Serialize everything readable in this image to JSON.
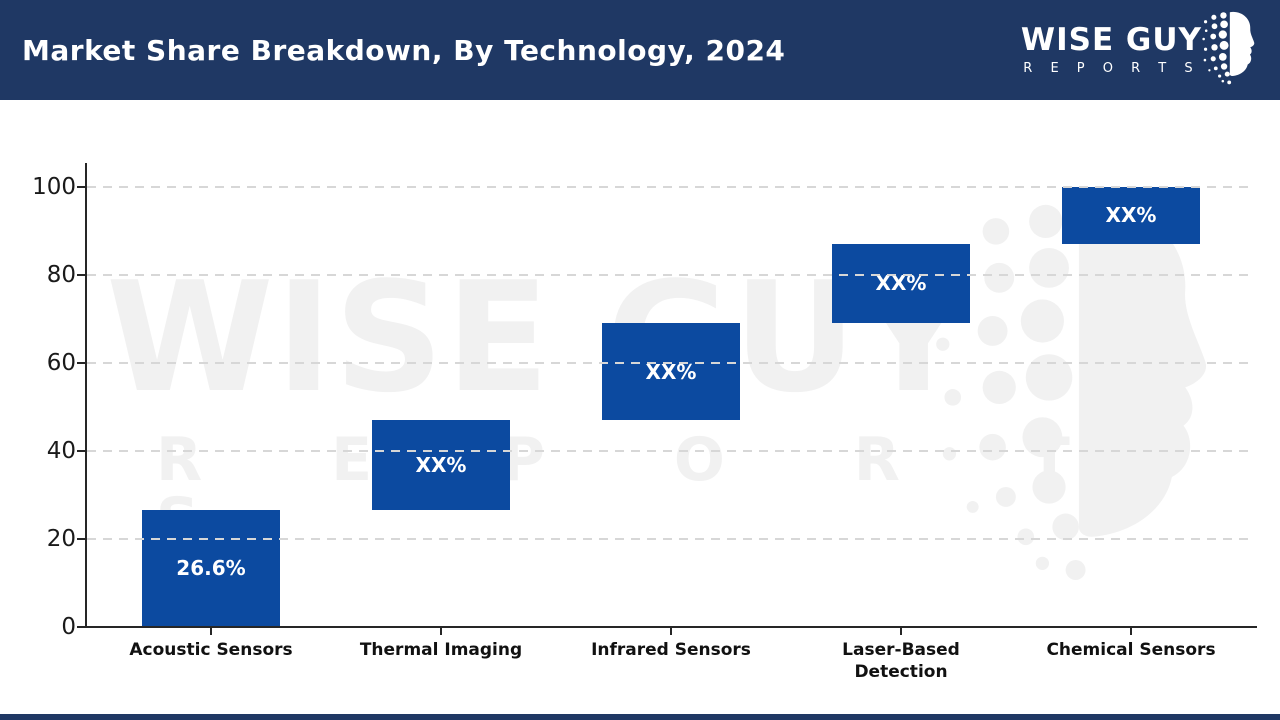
{
  "header": {
    "title": "Market Share Breakdown, By Technology, 2024",
    "logo": {
      "line1": "WISE GUY",
      "line2": "R E P O R T S"
    }
  },
  "watermark": {
    "line1": "WISE GUY",
    "line2": "R E P O R T S"
  },
  "theme": {
    "header_bg": "#1f3864",
    "footer_bg": "#1f3864",
    "bar_blue": "#0c4aa0",
    "grid_gray": "#d7d7d7",
    "axis_black": "#262626",
    "watermark_gray": "#f1f1f1",
    "bar_label_white": "#ffffff"
  },
  "chart_data": {
    "type": "bar",
    "subtype": "waterfall-floating-bars",
    "title": "Market Share Breakdown, By Technology, 2024",
    "xlabel": "",
    "ylabel": "",
    "categories": [
      "Acoustic Sensors",
      "Thermal Imaging",
      "Infrared Sensors",
      "Laser-Based\nDetection",
      "Chemical Sensors"
    ],
    "series": [
      {
        "name": "Market Share (%)",
        "segments": [
          {
            "category": "Acoustic Sensors",
            "start": 0,
            "end": 26.6,
            "label": "26.6%"
          },
          {
            "category": "Thermal Imaging",
            "start": 26.6,
            "end": 47,
            "label": "XX%"
          },
          {
            "category": "Infrared Sensors",
            "start": 47,
            "end": 69,
            "label": "XX%"
          },
          {
            "category": "Laser-Based Detection",
            "start": 69,
            "end": 87,
            "label": "XX%"
          },
          {
            "category": "Chemical Sensors",
            "start": 87,
            "end": 100,
            "label": "XX%"
          }
        ]
      }
    ],
    "ylim": [
      0,
      105
    ],
    "yticks": [
      0,
      20,
      40,
      60,
      80,
      100
    ],
    "grid": "horizontal dashed, drawn over bars",
    "legend": "none"
  }
}
